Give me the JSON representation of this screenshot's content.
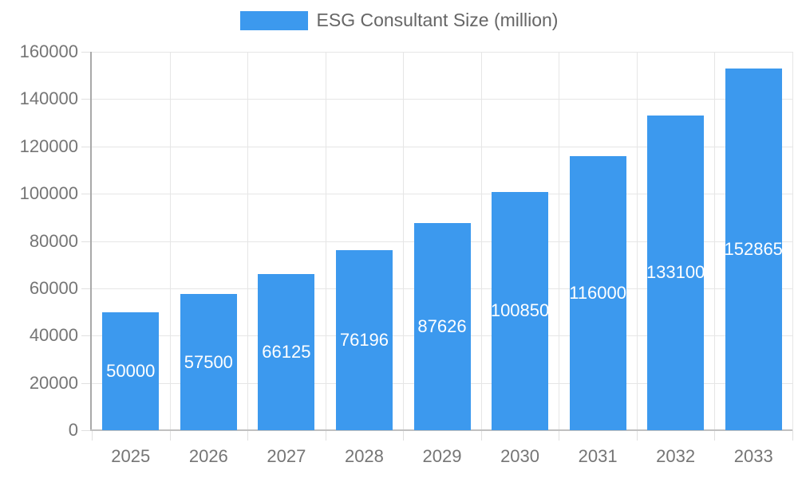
{
  "chart_data": {
    "type": "bar",
    "title": "",
    "legend": {
      "label": "ESG Consultant Size (million)",
      "position": "top"
    },
    "categories": [
      "2025",
      "2026",
      "2027",
      "2028",
      "2029",
      "2030",
      "2031",
      "2032",
      "2033"
    ],
    "values": [
      50000,
      57500,
      66125,
      76196,
      87626,
      100850,
      116000,
      133100,
      152865
    ],
    "series": [
      {
        "name": "ESG Consultant Size (million)",
        "values": [
          50000,
          57500,
          66125,
          76196,
          87626,
          100850,
          116000,
          133100,
          152865
        ]
      }
    ],
    "xlabel": "",
    "ylabel": "",
    "ylim": [
      0,
      160000
    ],
    "ytick_step": 20000,
    "yticks": [
      "0",
      "20000",
      "40000",
      "60000",
      "80000",
      "100000",
      "120000",
      "140000",
      "160000"
    ],
    "grid": "horizontal and vertical light gray gridlines",
    "bar_label_position": "inside-center",
    "colors": {
      "bar": "#3c99ee",
      "bar_label_text": "#ffffff",
      "gridline": "#e6e6e6",
      "axis_line_y": "#a9a9a9",
      "axis_line_x": "#c0c0c0",
      "tick": "#e0e0e0",
      "tick_text": "#757575",
      "legend_text": "#666666"
    }
  }
}
